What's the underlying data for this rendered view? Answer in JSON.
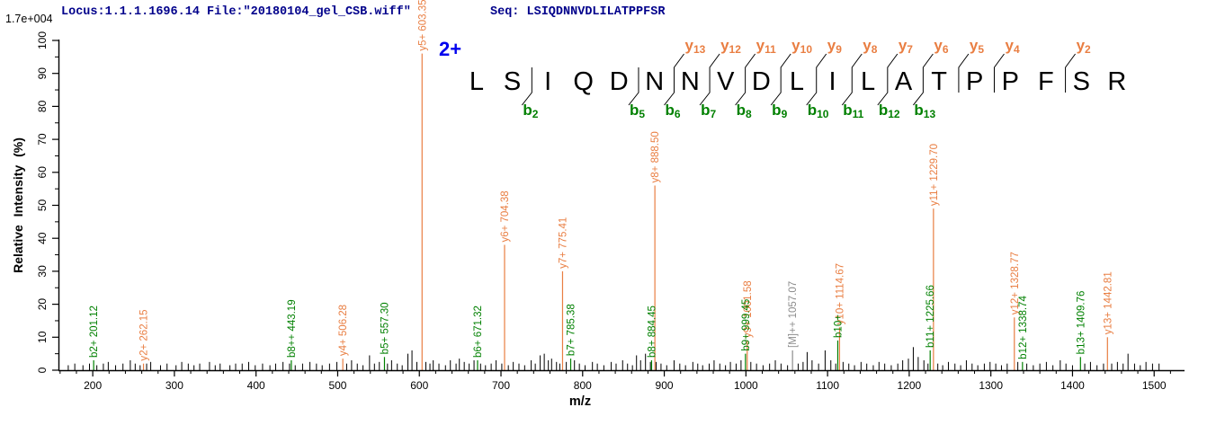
{
  "header": {
    "locus_file": "Locus:1.1.1.1696.14 File:\"20180104_gel_CSB.wiff\"",
    "seq": "Seq: LSIQDNNVDLILATPPFSR"
  },
  "peptide": {
    "charge_label": "2+",
    "residues": [
      "L",
      "S",
      "I",
      "Q",
      "D",
      "N",
      "N",
      "V",
      "D",
      "L",
      "I",
      "L",
      "A",
      "T",
      "P",
      "P",
      "F",
      "S",
      "R"
    ],
    "y_marks": [
      {
        "ion": "y",
        "sub": "13",
        "junction": 6
      },
      {
        "ion": "y",
        "sub": "12",
        "junction": 7
      },
      {
        "ion": "y",
        "sub": "11",
        "junction": 8
      },
      {
        "ion": "y",
        "sub": "10",
        "junction": 9
      },
      {
        "ion": "y",
        "sub": "9",
        "junction": 10
      },
      {
        "ion": "y",
        "sub": "8",
        "junction": 11
      },
      {
        "ion": "y",
        "sub": "7",
        "junction": 12
      },
      {
        "ion": "y",
        "sub": "6",
        "junction": 13
      },
      {
        "ion": "y",
        "sub": "5",
        "junction": 14
      },
      {
        "ion": "y",
        "sub": "4",
        "junction": 15
      },
      {
        "ion": "y",
        "sub": "2",
        "junction": 17
      }
    ],
    "b_marks": [
      {
        "ion": "b",
        "sub": "2",
        "junction": 2
      },
      {
        "ion": "b",
        "sub": "5",
        "junction": 5
      },
      {
        "ion": "b",
        "sub": "6",
        "junction": 6
      },
      {
        "ion": "b",
        "sub": "7",
        "junction": 7
      },
      {
        "ion": "b",
        "sub": "8",
        "junction": 8
      },
      {
        "ion": "b",
        "sub": "9",
        "junction": 9
      },
      {
        "ion": "b",
        "sub": "10",
        "junction": 10
      },
      {
        "ion": "b",
        "sub": "11",
        "junction": 11
      },
      {
        "ion": "b",
        "sub": "12",
        "junction": 12
      },
      {
        "ion": "b",
        "sub": "13",
        "junction": 13
      }
    ]
  },
  "colors": {
    "y_ion": "#e97e42",
    "b_ion": "#008000",
    "precursor": "#8c8c8c",
    "noise": "#000000",
    "header_text": "#00008b",
    "charge_text": "#0000ee",
    "axis": "#000000"
  },
  "chart_data": {
    "type": "bar",
    "xlabel": "m/z",
    "ylabel": "Relative Intensity (%)",
    "absolute_intensity_scale": "1.7e+004",
    "xlim": [
      158,
      1535
    ],
    "ylim": [
      0,
      100
    ],
    "x_major_ticks": [
      200,
      300,
      400,
      500,
      600,
      700,
      800,
      900,
      1000,
      1100,
      1200,
      1300,
      1400,
      1500
    ],
    "x_minor_step": 20,
    "y_major_step": 10,
    "y_minor_step": 5,
    "series": [
      {
        "name": "y-ions",
        "color": "#e97e42",
        "points": [
          {
            "label": "y2+ 262.15",
            "mz": 262.15,
            "intensity": 2
          },
          {
            "label": "y4+ 506.28",
            "mz": 506.28,
            "intensity": 3.5
          },
          {
            "label": "y5+ 603.35",
            "mz": 603.35,
            "intensity": 96
          },
          {
            "label": "y6+ 704.38",
            "mz": 704.38,
            "intensity": 38
          },
          {
            "label": "y7+ 775.41",
            "mz": 775.41,
            "intensity": 30
          },
          {
            "label": "y8+ 888.50",
            "mz": 888.5,
            "intensity": 56
          },
          {
            "label": "y9+ 1001.58",
            "mz": 1001.58,
            "intensity": 9
          },
          {
            "label": "y10+ 1114.67",
            "mz": 1114.67,
            "intensity": 13
          },
          {
            "label": "y11+ 1229.70",
            "mz": 1229.7,
            "intensity": 49
          },
          {
            "label": "y12+ 1328.77",
            "mz": 1328.77,
            "intensity": 16
          },
          {
            "label": "y13+ 1442.81",
            "mz": 1442.81,
            "intensity": 10
          }
        ]
      },
      {
        "name": "b-ions",
        "color": "#008000",
        "points": [
          {
            "label": "b2+ 201.12",
            "mz": 201.12,
            "intensity": 3
          },
          {
            "label": "b8++ 443.19",
            "mz": 443.19,
            "intensity": 3
          },
          {
            "label": "b5+ 557.30",
            "mz": 557.3,
            "intensity": 4
          },
          {
            "label": "b6+ 671.32",
            "mz": 671.32,
            "intensity": 3
          },
          {
            "label": "b7+ 785.38",
            "mz": 785.38,
            "intensity": 3.5
          },
          {
            "label": "b8+ 884.45",
            "mz": 884.45,
            "intensity": 3
          },
          {
            "label": "b9+ 999.45",
            "mz": 999.45,
            "intensity": 5
          },
          {
            "label": "b10+",
            "mz": 1112.5,
            "intensity": 9
          },
          {
            "label": "b11+ 1225.66",
            "mz": 1225.66,
            "intensity": 6
          },
          {
            "label": "b12+ 1338.74",
            "mz": 1338.74,
            "intensity": 2.5
          },
          {
            "label": "b13+ 1409.76",
            "mz": 1409.76,
            "intensity": 4
          }
        ]
      },
      {
        "name": "precursor",
        "color": "#8c8c8c",
        "points": [
          {
            "label": "[M]++ 1057.07",
            "mz": 1057.07,
            "intensity": 6
          }
        ]
      },
      {
        "name": "unassigned",
        "color": "#000000",
        "points": []
      }
    ],
    "noise": [
      [
        170,
        1.5
      ],
      [
        178,
        2
      ],
      [
        188,
        1.5
      ],
      [
        196,
        2
      ],
      [
        205,
        1.5
      ],
      [
        213,
        2
      ],
      [
        219,
        2.5
      ],
      [
        228,
        1.5
      ],
      [
        237,
        2
      ],
      [
        246,
        3
      ],
      [
        252,
        2
      ],
      [
        258,
        1.5
      ],
      [
        266,
        2
      ],
      [
        271,
        2.5
      ],
      [
        283,
        1.5
      ],
      [
        291,
        2
      ],
      [
        302,
        1.5
      ],
      [
        309,
        2.5
      ],
      [
        317,
        2
      ],
      [
        324,
        1.5
      ],
      [
        331,
        2
      ],
      [
        343,
        2.5
      ],
      [
        350,
        1.5
      ],
      [
        356,
        2
      ],
      [
        368,
        1.5
      ],
      [
        375,
        2
      ],
      [
        383,
        2
      ],
      [
        391,
        2.5
      ],
      [
        399,
        1.5
      ],
      [
        408,
        2
      ],
      [
        417,
        1.5
      ],
      [
        424,
        2
      ],
      [
        433,
        2.5
      ],
      [
        441,
        2
      ],
      [
        448,
        1.5
      ],
      [
        457,
        2
      ],
      [
        466,
        2.5
      ],
      [
        474,
        2
      ],
      [
        481,
        1.5
      ],
      [
        490,
        2
      ],
      [
        499,
        2.5
      ],
      [
        511,
        2
      ],
      [
        517,
        3
      ],
      [
        524,
        2
      ],
      [
        531,
        1.5
      ],
      [
        539,
        4.5
      ],
      [
        545,
        2
      ],
      [
        551,
        2.5
      ],
      [
        561,
        2
      ],
      [
        566,
        3
      ],
      [
        573,
        2
      ],
      [
        579,
        1.5
      ],
      [
        586,
        5
      ],
      [
        591,
        6
      ],
      [
        597,
        2.5
      ],
      [
        608,
        2.5
      ],
      [
        613,
        2
      ],
      [
        617,
        3
      ],
      [
        624,
        2
      ],
      [
        632,
        1.5
      ],
      [
        638,
        3
      ],
      [
        645,
        2
      ],
      [
        649,
        3.5
      ],
      [
        655,
        2.5
      ],
      [
        661,
        2
      ],
      [
        667,
        3
      ],
      [
        675,
        2
      ],
      [
        681,
        1.5
      ],
      [
        688,
        2
      ],
      [
        694,
        3
      ],
      [
        701,
        2
      ],
      [
        709,
        1.5
      ],
      [
        715,
        2.5
      ],
      [
        722,
        2
      ],
      [
        729,
        1.5
      ],
      [
        737,
        3
      ],
      [
        742,
        2
      ],
      [
        748,
        4.5
      ],
      [
        753,
        5
      ],
      [
        758,
        3
      ],
      [
        762,
        3.5
      ],
      [
        768,
        2.5
      ],
      [
        772,
        2
      ],
      [
        780,
        2.5
      ],
      [
        790,
        3
      ],
      [
        796,
        2
      ],
      [
        803,
        1.5
      ],
      [
        812,
        2.5
      ],
      [
        818,
        2
      ],
      [
        826,
        1.5
      ],
      [
        835,
        2.5
      ],
      [
        841,
        2
      ],
      [
        849,
        3
      ],
      [
        855,
        2
      ],
      [
        861,
        1.5
      ],
      [
        866,
        4.5
      ],
      [
        871,
        3
      ],
      [
        877,
        5
      ],
      [
        883,
        2.5
      ],
      [
        890,
        2.5
      ],
      [
        896,
        2
      ],
      [
        903,
        1.5
      ],
      [
        912,
        3
      ],
      [
        919,
        2
      ],
      [
        926,
        1.5
      ],
      [
        935,
        2.5
      ],
      [
        941,
        2
      ],
      [
        947,
        1.5
      ],
      [
        955,
        2
      ],
      [
        961,
        3
      ],
      [
        968,
        2
      ],
      [
        975,
        1.5
      ],
      [
        981,
        2.5
      ],
      [
        988,
        2
      ],
      [
        994,
        3
      ],
      [
        1006,
        2.5
      ],
      [
        1013,
        2
      ],
      [
        1021,
        1.5
      ],
      [
        1029,
        2
      ],
      [
        1036,
        3
      ],
      [
        1043,
        2
      ],
      [
        1051,
        1.5
      ],
      [
        1064,
        2
      ],
      [
        1070,
        2.5
      ],
      [
        1075,
        5.5
      ],
      [
        1081,
        3
      ],
      [
        1089,
        2
      ],
      [
        1097,
        6
      ],
      [
        1104,
        3
      ],
      [
        1110,
        2
      ],
      [
        1119,
        2.5
      ],
      [
        1126,
        2
      ],
      [
        1133,
        1.5
      ],
      [
        1141,
        2.5
      ],
      [
        1148,
        2
      ],
      [
        1156,
        1.5
      ],
      [
        1163,
        2.5
      ],
      [
        1170,
        2
      ],
      [
        1178,
        1.5
      ],
      [
        1186,
        2
      ],
      [
        1192,
        3
      ],
      [
        1199,
        3.5
      ],
      [
        1205,
        7
      ],
      [
        1211,
        4
      ],
      [
        1218,
        3
      ],
      [
        1223,
        2
      ],
      [
        1235,
        2
      ],
      [
        1241,
        1.5
      ],
      [
        1248,
        2.5
      ],
      [
        1256,
        2
      ],
      [
        1263,
        1.5
      ],
      [
        1270,
        3
      ],
      [
        1277,
        2
      ],
      [
        1284,
        1.5
      ],
      [
        1292,
        2
      ],
      [
        1299,
        2.5
      ],
      [
        1306,
        2
      ],
      [
        1313,
        1.5
      ],
      [
        1320,
        2
      ],
      [
        1333,
        2.5
      ],
      [
        1344,
        2
      ],
      [
        1352,
        1.5
      ],
      [
        1360,
        2
      ],
      [
        1368,
        2.5
      ],
      [
        1376,
        1.5
      ],
      [
        1385,
        3
      ],
      [
        1392,
        2
      ],
      [
        1400,
        1.5
      ],
      [
        1415,
        2
      ],
      [
        1422,
        2.5
      ],
      [
        1430,
        1.5
      ],
      [
        1438,
        2
      ],
      [
        1448,
        2
      ],
      [
        1455,
        2.5
      ],
      [
        1462,
        2
      ],
      [
        1468,
        5
      ],
      [
        1476,
        2
      ],
      [
        1483,
        1.5
      ],
      [
        1490,
        2.5
      ],
      [
        1498,
        2
      ],
      [
        1506,
        2
      ]
    ]
  }
}
